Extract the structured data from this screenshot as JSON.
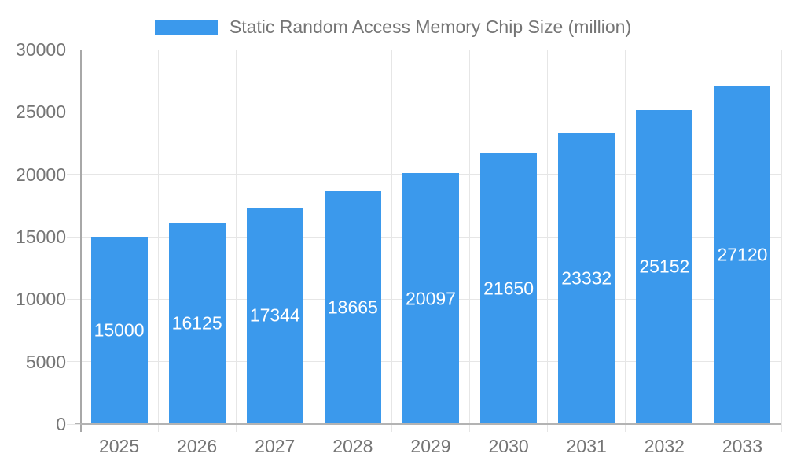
{
  "chart_data": {
    "type": "bar",
    "title": "Static Random Access Memory Chip Size (million)",
    "categories": [
      "2025",
      "2026",
      "2027",
      "2028",
      "2029",
      "2030",
      "2031",
      "2032",
      "2033"
    ],
    "series": [
      {
        "name": "Static Random Access Memory Chip Size (million)",
        "values": [
          15000,
          16125,
          17344,
          18665,
          20097,
          21650,
          23332,
          25152,
          27120
        ]
      }
    ],
    "value_labels": [
      "15000",
      "16125",
      "17344",
      "18665",
      "20097",
      "21650",
      "23332",
      "25152",
      "27120"
    ],
    "xlabel": "",
    "ylabel": "",
    "ylim": [
      0,
      30000
    ],
    "yticks": [
      0,
      5000,
      10000,
      15000,
      20000,
      25000,
      30000
    ],
    "ytick_labels": [
      "0",
      "5000",
      "10000",
      "15000",
      "20000",
      "25000",
      "30000"
    ],
    "grid": true,
    "legend_position": "top",
    "colors": {
      "bar": "#3b99ec",
      "value_label": "#ffffff",
      "axis_text": "#757575",
      "gridline": "#e6e6e6",
      "axis_line": "#a8a8a8",
      "background": "#ffffff"
    }
  },
  "legend": {
    "label": "Static Random Access Memory Chip Size (million)",
    "swatch_color": "#3b99ec"
  }
}
